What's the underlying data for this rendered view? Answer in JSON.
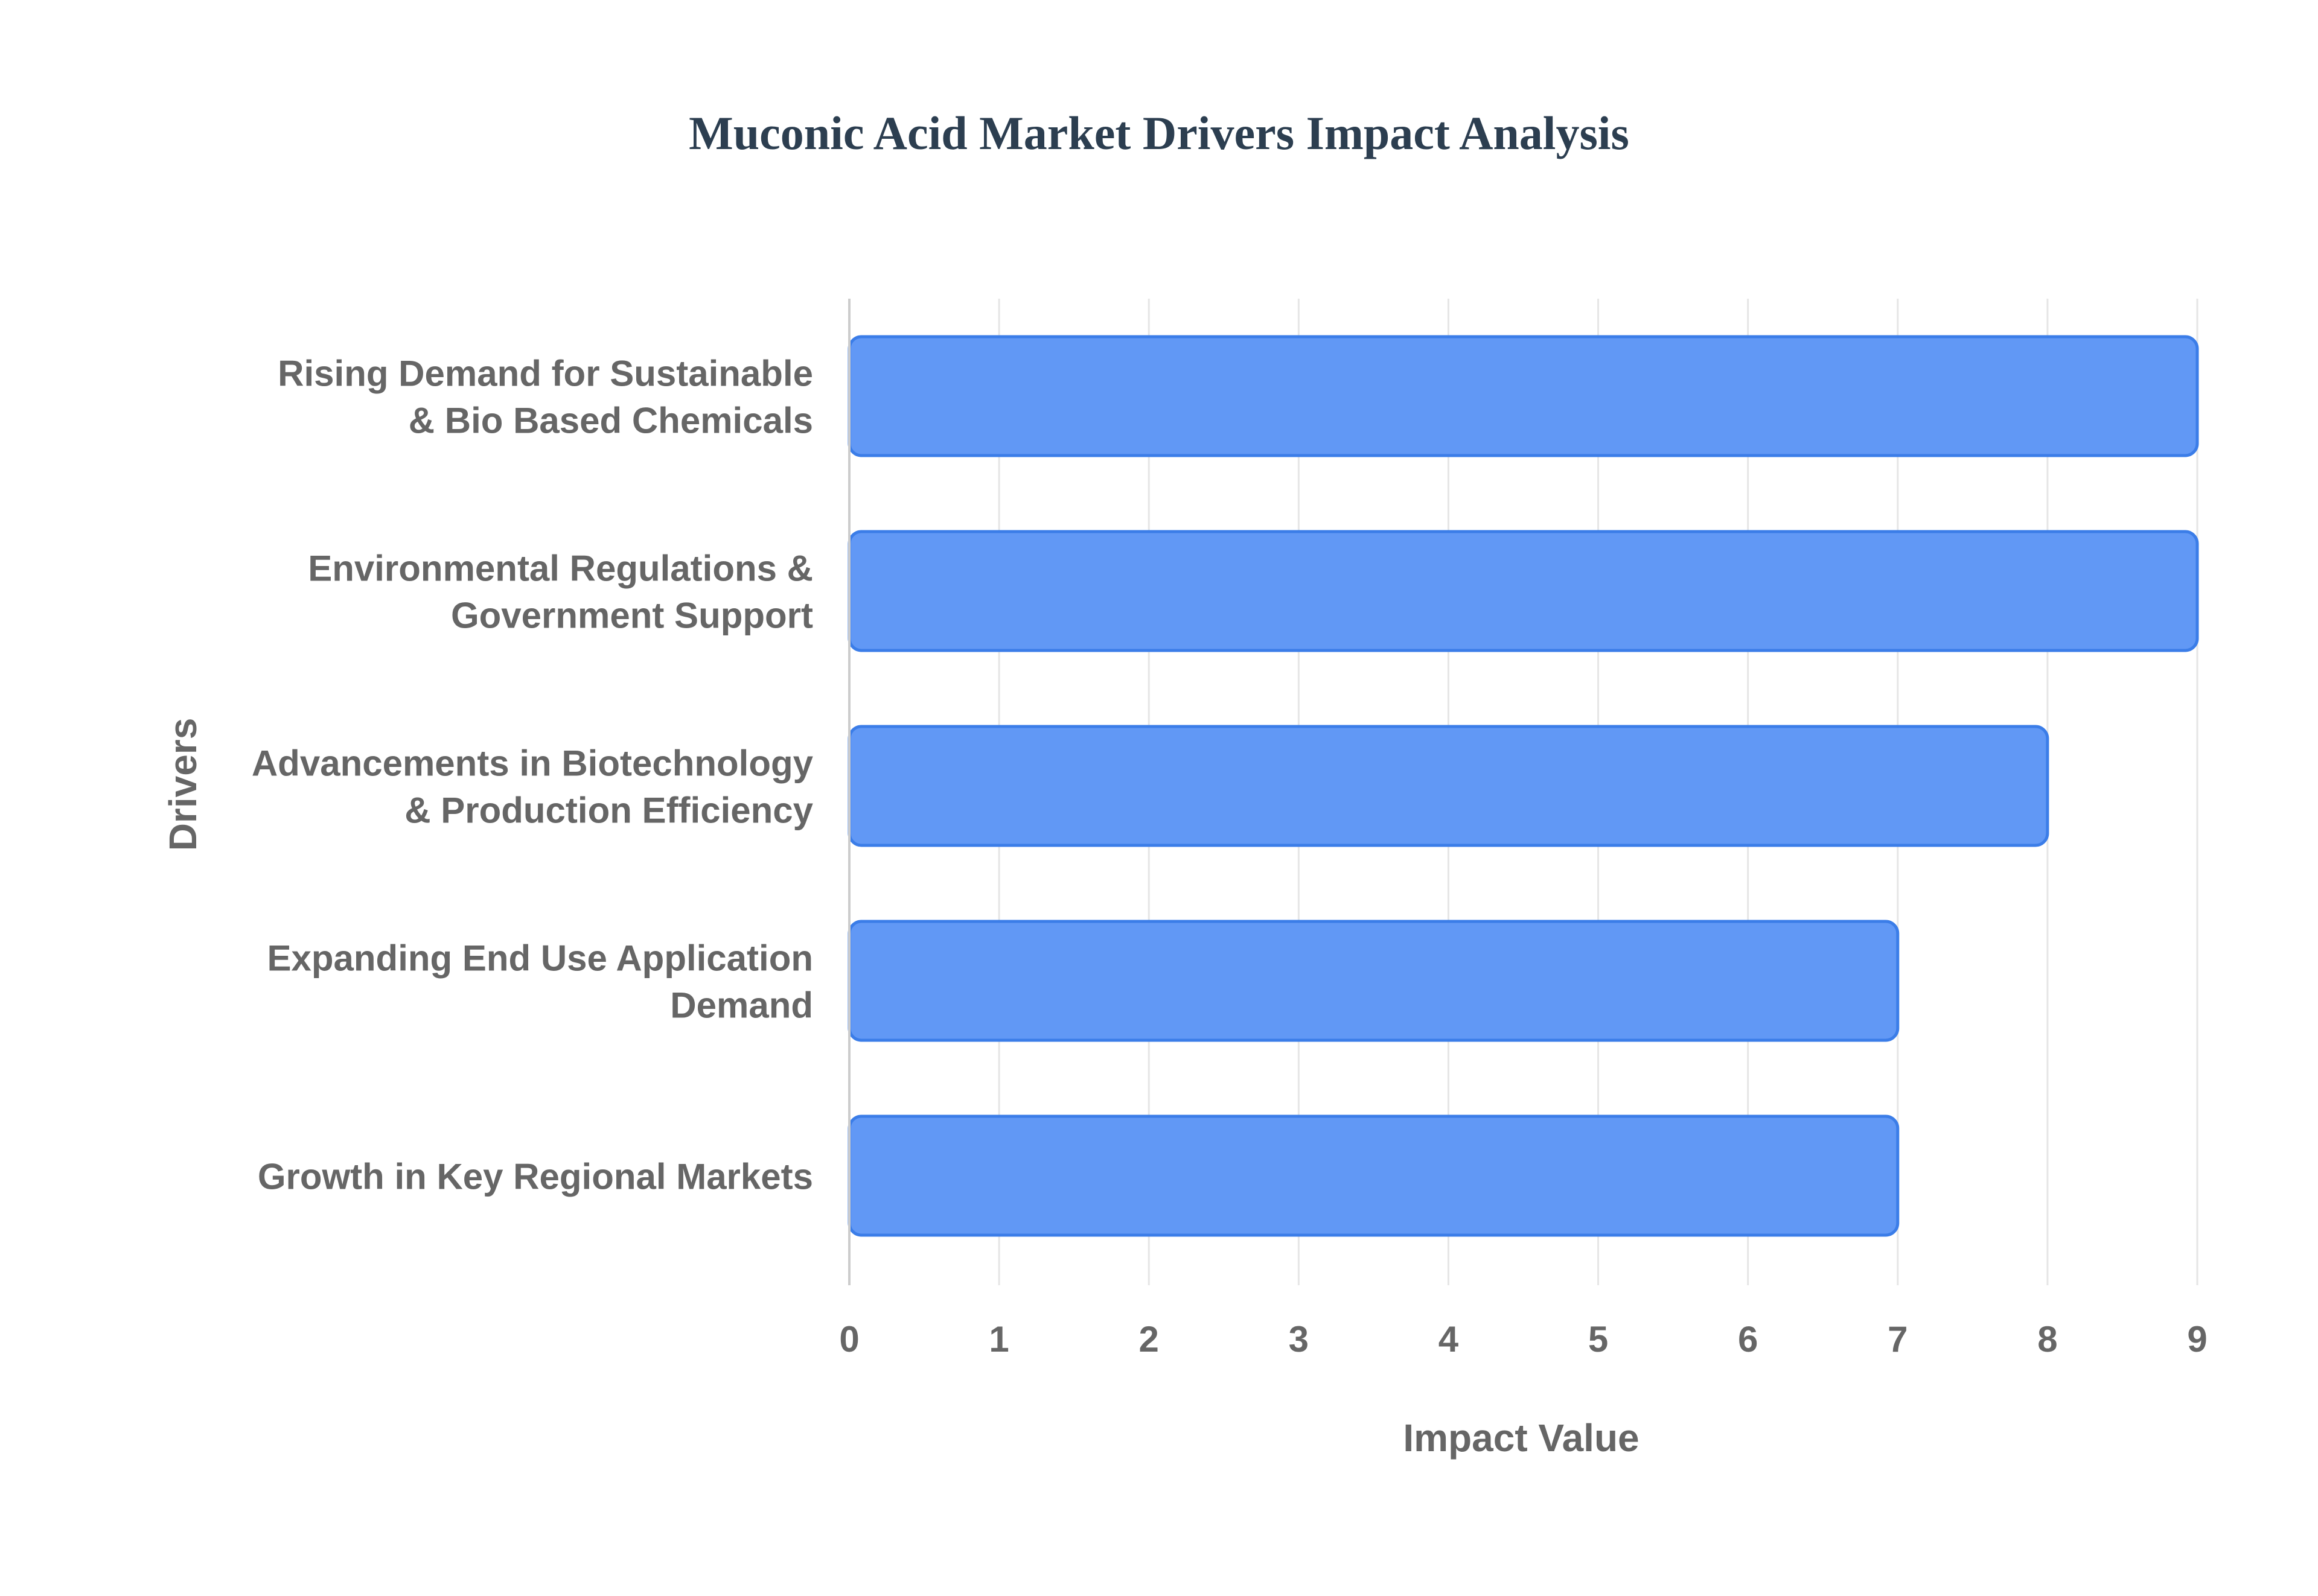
{
  "chart_data": {
    "type": "bar",
    "orientation": "horizontal",
    "title": "Muconic Acid Market Drivers Impact Analysis",
    "xlabel": "Impact Value",
    "ylabel": "Drivers",
    "xlim": [
      0,
      9
    ],
    "x_ticks": [
      0,
      1,
      2,
      3,
      4,
      5,
      6,
      7,
      8,
      9
    ],
    "grid": true,
    "categories": [
      [
        "Rising Demand for Sustainable",
        "& Bio Based Chemicals"
      ],
      [
        "Environmental Regulations &",
        "Government Support"
      ],
      [
        "Advancements in Biotechnology",
        "& Production Efficiency"
      ],
      [
        "Expanding End Use Application",
        "Demand"
      ],
      [
        "Growth in Key Regional Markets"
      ]
    ],
    "values": [
      9,
      9,
      8,
      7,
      7
    ],
    "colors": {
      "bar_fill": "#6198f5",
      "bar_stroke": "#3b7de8",
      "title": "#2c3e50",
      "label": "#666666",
      "grid": "#e6e6e6",
      "axis": "#cccccc"
    }
  }
}
